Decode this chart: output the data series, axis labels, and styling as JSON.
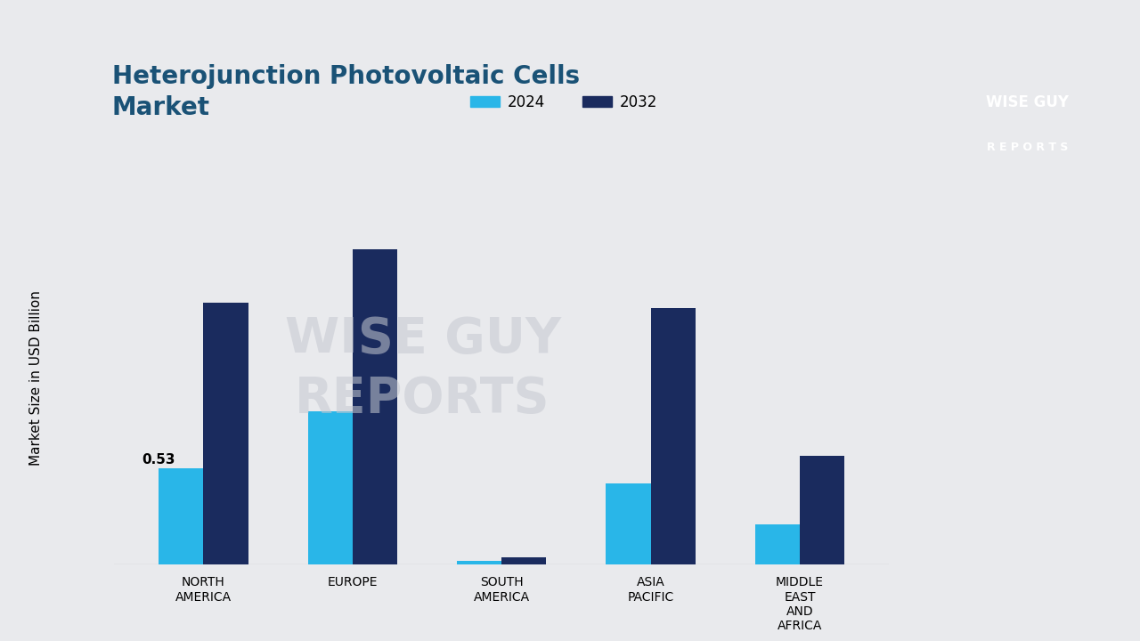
{
  "title": "Heterojunction Photovoltaic Cells\nMarket",
  "title_color": "#1a5276",
  "ylabel": "Market Size in USD Billion",
  "categories": [
    "NORTH\nAMERICA",
    "EUROPE",
    "SOUTH\nAMERICA",
    "ASIA\nPACIFIC",
    "MIDDLE\nEAST\nAND\nAFRICA"
  ],
  "values_2024": [
    0.53,
    0.85,
    0.02,
    0.45,
    0.22
  ],
  "values_2032": [
    1.45,
    1.75,
    0.04,
    1.42,
    0.6
  ],
  "color_2024": "#29b6e8",
  "color_2032": "#1a2b5e",
  "bg_color": "#e9eaed",
  "right_panel_color": "#1a2b5e",
  "annotation_value": "0.53",
  "annotation_category_idx": 0,
  "legend_2024": "2024",
  "legend_2032": "2032",
  "bar_width": 0.3
}
